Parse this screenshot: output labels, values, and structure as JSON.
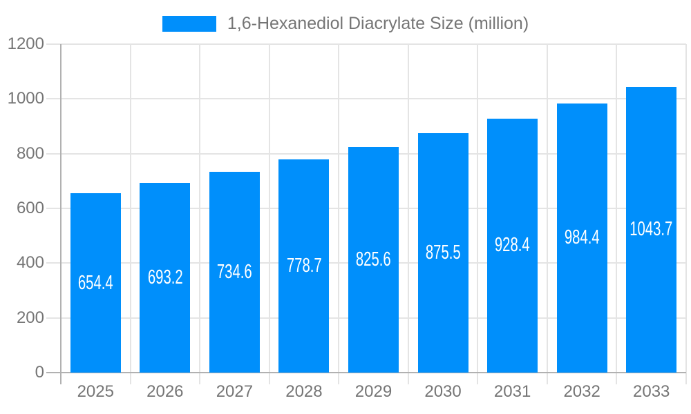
{
  "chart_data": {
    "type": "bar",
    "title": "1,6-Hexanediol Diacrylate Size (million)",
    "legend_position": "top",
    "categories": [
      "2025",
      "2026",
      "2027",
      "2028",
      "2029",
      "2030",
      "2031",
      "2032",
      "2033"
    ],
    "series": [
      {
        "name": "1,6-Hexanediol Diacrylate Size (million)",
        "values": [
          654.4,
          693.2,
          734.6,
          778.7,
          825.6,
          875.5,
          928.4,
          984.4,
          1043.7
        ]
      }
    ],
    "value_labels": [
      "654.4",
      "693.2",
      "734.6",
      "778.7",
      "825.6",
      "875.5",
      "928.4",
      "984.4",
      "1043.7"
    ],
    "xlabel": "",
    "ylabel": "",
    "ylim": [
      0,
      1200
    ],
    "yticks": [
      0,
      200,
      400,
      600,
      800,
      1000,
      1200
    ],
    "grid": true,
    "colors": {
      "bar": "#008FFB",
      "grid": "#e4e4e4",
      "axis": "#b1b1b1",
      "text": "#757575",
      "value_label": "#ffffff",
      "background": "#ffffff"
    }
  }
}
